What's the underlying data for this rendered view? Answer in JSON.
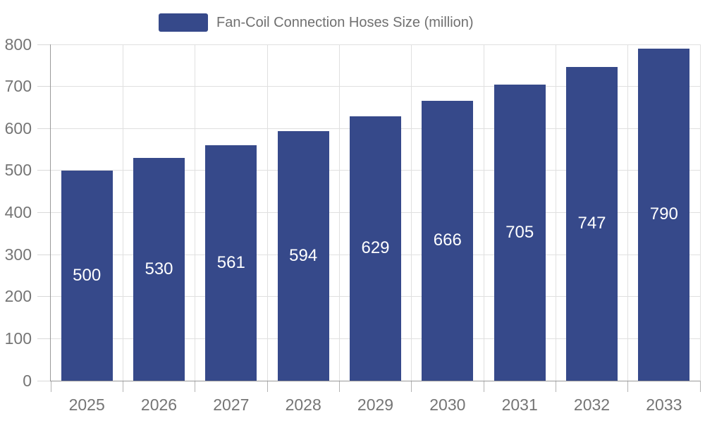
{
  "legend": {
    "label": "Fan-Coil Connection Hoses Size (million)",
    "swatch_color": "#36498a"
  },
  "chart_data": {
    "type": "bar",
    "title": "Fan-Coil Connection Hoses Size (million)",
    "series_name": "Fan-Coil Connection Hoses Size (million)",
    "categories": [
      "2025",
      "2026",
      "2027",
      "2028",
      "2029",
      "2030",
      "2031",
      "2032",
      "2033"
    ],
    "values": [
      500,
      530,
      561,
      594,
      629,
      666,
      705,
      747,
      790
    ],
    "value_labels": [
      "500",
      "530",
      "561",
      "594",
      "629",
      "666",
      "705",
      "747",
      "790"
    ],
    "xlabel": "",
    "ylabel": "",
    "ylim": [
      0,
      800
    ],
    "yticks": [
      0,
      100,
      200,
      300,
      400,
      500,
      600,
      700,
      800
    ],
    "grid": true,
    "legend_position": "top",
    "colors": {
      "bar": "#36498a",
      "value_label": "#ffffff",
      "axis_label": "#757575",
      "legend_label": "#707070",
      "gridline": "#e0e0e0",
      "axis_line": "#999999"
    }
  }
}
